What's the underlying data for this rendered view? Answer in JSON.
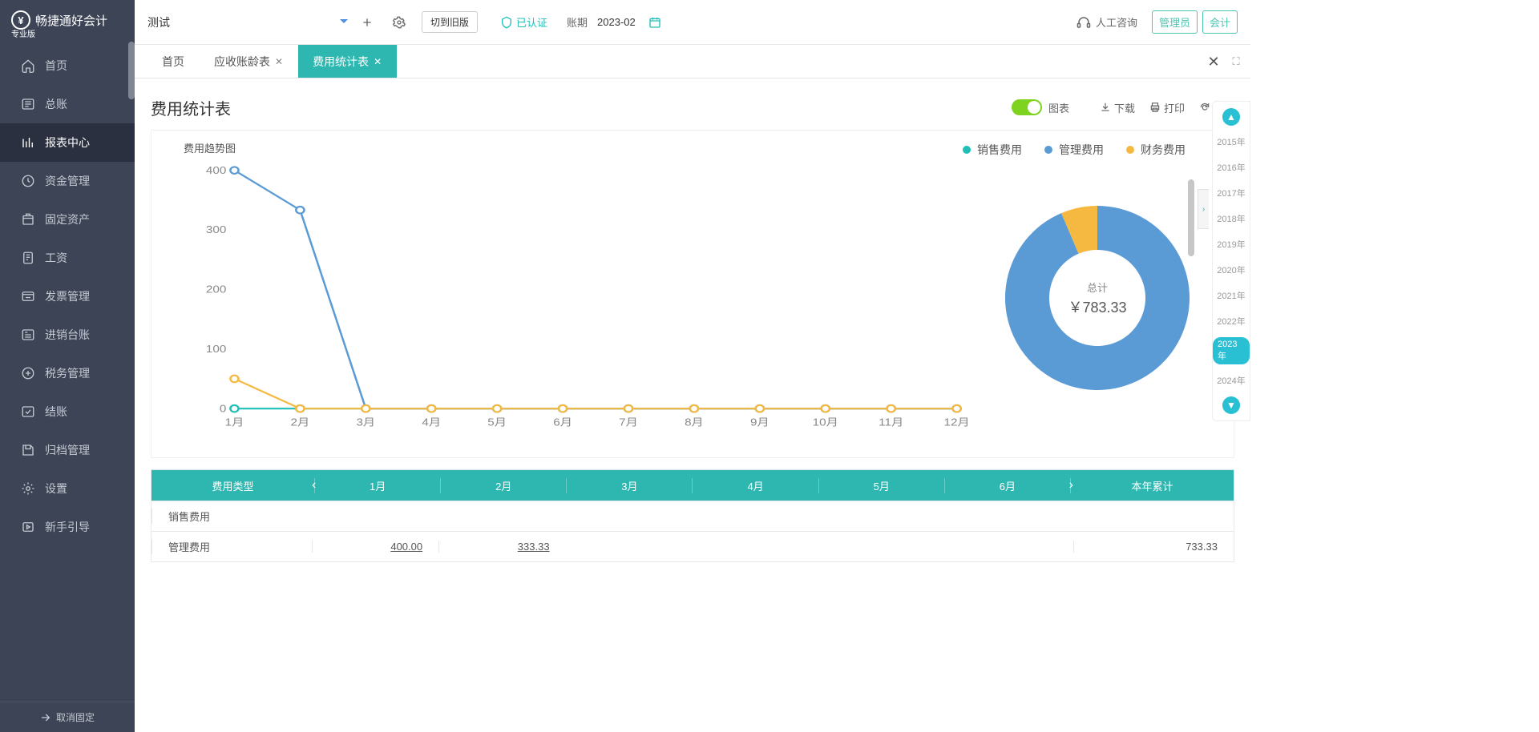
{
  "brand": {
    "name": "畅捷通好会计",
    "edition": "专业版"
  },
  "sidebar": {
    "items": [
      {
        "label": "首页"
      },
      {
        "label": "总账"
      },
      {
        "label": "报表中心"
      },
      {
        "label": "资金管理"
      },
      {
        "label": "固定资产"
      },
      {
        "label": "工资"
      },
      {
        "label": "发票管理"
      },
      {
        "label": "进销台账"
      },
      {
        "label": "税务管理"
      },
      {
        "label": "结账"
      },
      {
        "label": "归档管理"
      },
      {
        "label": "设置"
      },
      {
        "label": "新手引导"
      }
    ],
    "footer": "取消固定"
  },
  "topbar": {
    "company": "测试",
    "old_version": "切到旧版",
    "auth": "已认证",
    "period_label": "账期",
    "period_value": "2023-02",
    "consult": "人工咨询",
    "role_admin": "管理员",
    "role_acc": "会计"
  },
  "tabs": [
    {
      "label": "首页",
      "closable": false
    },
    {
      "label": "应收账龄表",
      "closable": true
    },
    {
      "label": "费用统计表",
      "closable": true,
      "active": true
    }
  ],
  "page": {
    "title": "费用统计表",
    "toggle_label": "图表",
    "download": "下载",
    "print": "打印",
    "refresh": "刷新"
  },
  "chart": {
    "title": "费用趋势图",
    "legend": [
      {
        "label": "销售费用",
        "color": "#1fbfb8"
      },
      {
        "label": "管理费用",
        "color": "#5b9bd5"
      },
      {
        "label": "财务费用",
        "color": "#f5b942"
      }
    ],
    "line": {
      "type": "line",
      "xlabels": [
        "1月",
        "2月",
        "3月",
        "4月",
        "5月",
        "6月",
        "7月",
        "8月",
        "9月",
        "10月",
        "11月",
        "12月"
      ],
      "ylim": [
        0,
        400
      ],
      "ytick_step": 100,
      "yticks": [
        "0",
        "100",
        "200",
        "300",
        "400"
      ],
      "series": [
        {
          "name": "销售费用",
          "color": "#1fbfb8",
          "values": [
            0,
            0,
            0,
            0,
            0,
            0,
            0,
            0,
            0,
            0,
            0,
            0
          ]
        },
        {
          "name": "管理费用",
          "color": "#5b9bd5",
          "values": [
            400,
            333.33,
            0,
            0,
            0,
            0,
            0,
            0,
            0,
            0,
            0,
            0
          ]
        },
        {
          "name": "财务费用",
          "color": "#f5b942",
          "values": [
            50,
            0,
            0,
            0,
            0,
            0,
            0,
            0,
            0,
            0,
            0,
            0
          ]
        }
      ],
      "marker_radius": 4,
      "line_width": 2
    },
    "donut": {
      "type": "donut",
      "center_label": "总计",
      "center_value": "￥783.33",
      "slices": [
        {
          "name": "管理费用",
          "value": 733.33,
          "color": "#5b9bd5"
        },
        {
          "name": "财务费用",
          "value": 50,
          "color": "#f5b942"
        }
      ],
      "inner_radius": 60,
      "outer_radius": 115
    }
  },
  "table": {
    "type_col": "费用类型",
    "months": [
      "1月",
      "2月",
      "3月",
      "4月",
      "5月",
      "6月"
    ],
    "total_col": "本年累计",
    "rows": [
      {
        "name": "销售费用",
        "cells": [
          "",
          "",
          "",
          "",
          "",
          ""
        ],
        "total": ""
      },
      {
        "name": "管理费用",
        "cells": [
          "400.00",
          "333.33",
          "",
          "",
          "",
          ""
        ],
        "total": "733.33"
      }
    ]
  },
  "years": {
    "list": [
      "2015年",
      "2016年",
      "2017年",
      "2018年",
      "2019年",
      "2020年",
      "2021年",
      "2022年",
      "2023年",
      "2024年"
    ],
    "active": "2023年"
  }
}
